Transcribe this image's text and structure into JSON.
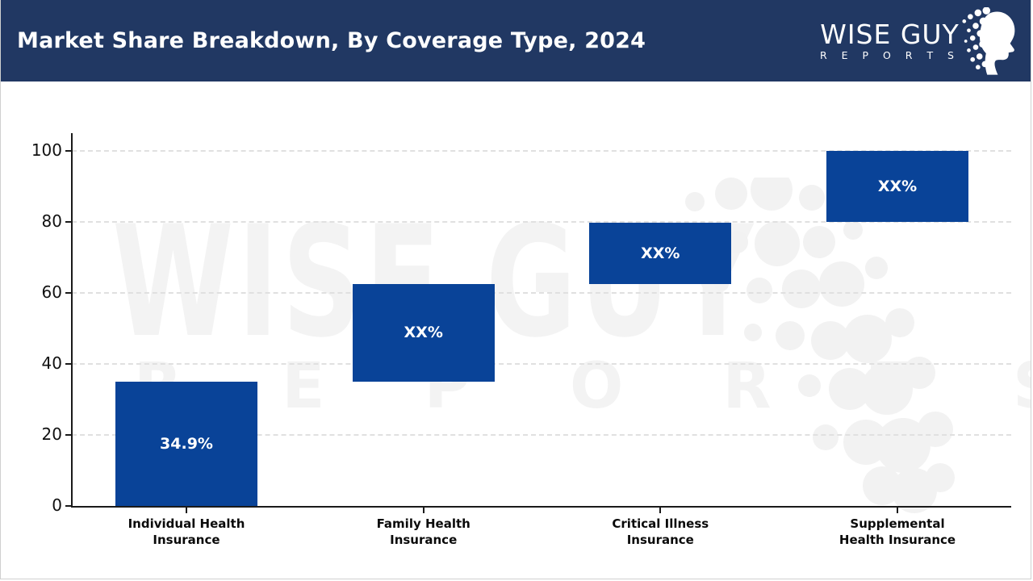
{
  "header": {
    "bg_color": "#213863",
    "title": "Market Share Breakdown, By Coverage Type, 2024",
    "title_color": "#ffffff",
    "logo": {
      "wordmark": "WISE GUY",
      "subtext": "R E P O R T S"
    }
  },
  "watermark": {
    "line1": "WISE GUY",
    "line2": "R E P O R T S"
  },
  "chart_data": {
    "type": "bar",
    "variant": "waterfall",
    "title": "Market Share Breakdown, By Coverage Type, 2024",
    "categories": [
      "Individual Health Insurance",
      "Family Health Insurance",
      "Critical Illness Insurance",
      "Supplemental Health Insurance"
    ],
    "category_lines": [
      [
        "Individual Health",
        "Insurance"
      ],
      [
        "Family Health",
        "Insurance"
      ],
      [
        "Critical Illness",
        "Insurance"
      ],
      [
        "Supplemental",
        "Health Insurance"
      ]
    ],
    "segments": [
      {
        "category": "Individual Health Insurance",
        "start": 0,
        "end": 34.9,
        "label": "34.9%"
      },
      {
        "category": "Family Health Insurance",
        "start": 35,
        "end": 62.6,
        "label": "XX%"
      },
      {
        "category": "Critical Illness Insurance",
        "start": 62.6,
        "end": 79.8,
        "label": "XX%"
      },
      {
        "category": "Supplemental Health Insurance",
        "start": 80,
        "end": 100,
        "label": "XX%"
      }
    ],
    "y_ticks": [
      0,
      20,
      40,
      60,
      80,
      100
    ],
    "ylim": [
      0,
      105
    ],
    "xlabel": "",
    "ylabel": "",
    "grid": "horizontal-dashed",
    "legend": "none",
    "bar_color": "#094398",
    "bar_label_color": "#ffffff",
    "axis_color": "#1a1a1a",
    "grid_color": "#e0e0e0",
    "tick_label_color": "#111111",
    "watermark_color": "#f3f3f3"
  }
}
